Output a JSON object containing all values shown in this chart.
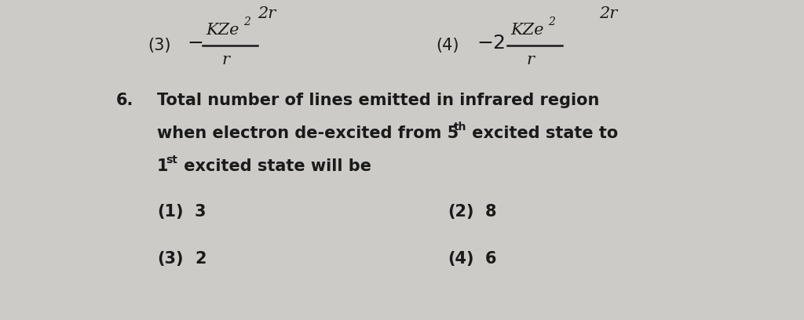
{
  "bg_color": "#cccbc8",
  "text_color": "#1a1a1a",
  "top_left_2r": "2r",
  "top_right_2r": "2r",
  "opt3_label": "(3)",
  "opt3_minus": "−",
  "opt3_numer": "KZe",
  "opt3_sup": "2",
  "opt3_denom": "r",
  "opt4_label": "(4)",
  "opt4_coeff": "−2",
  "opt4_numer": "KZe",
  "opt4_sup": "2",
  "opt4_denom": "r",
  "q_num": "6.",
  "q_line1": "Total number of lines emitted in infrared region",
  "q_line2a": "when electron de-excited from 5",
  "q_line2_sup": "th",
  "q_line2b": " excited state to",
  "q_line3a": "1",
  "q_line3_sup": "st",
  "q_line3b": " excited state will be",
  "a1p": "(1)",
  "a1v": "3",
  "a2p": "(2)",
  "a2v": "8",
  "a3p": "(3)",
  "a3v": "2",
  "a4p": "(4)",
  "a4v": "6",
  "fs": 15,
  "fs_sup": 10,
  "fs_q": 15
}
